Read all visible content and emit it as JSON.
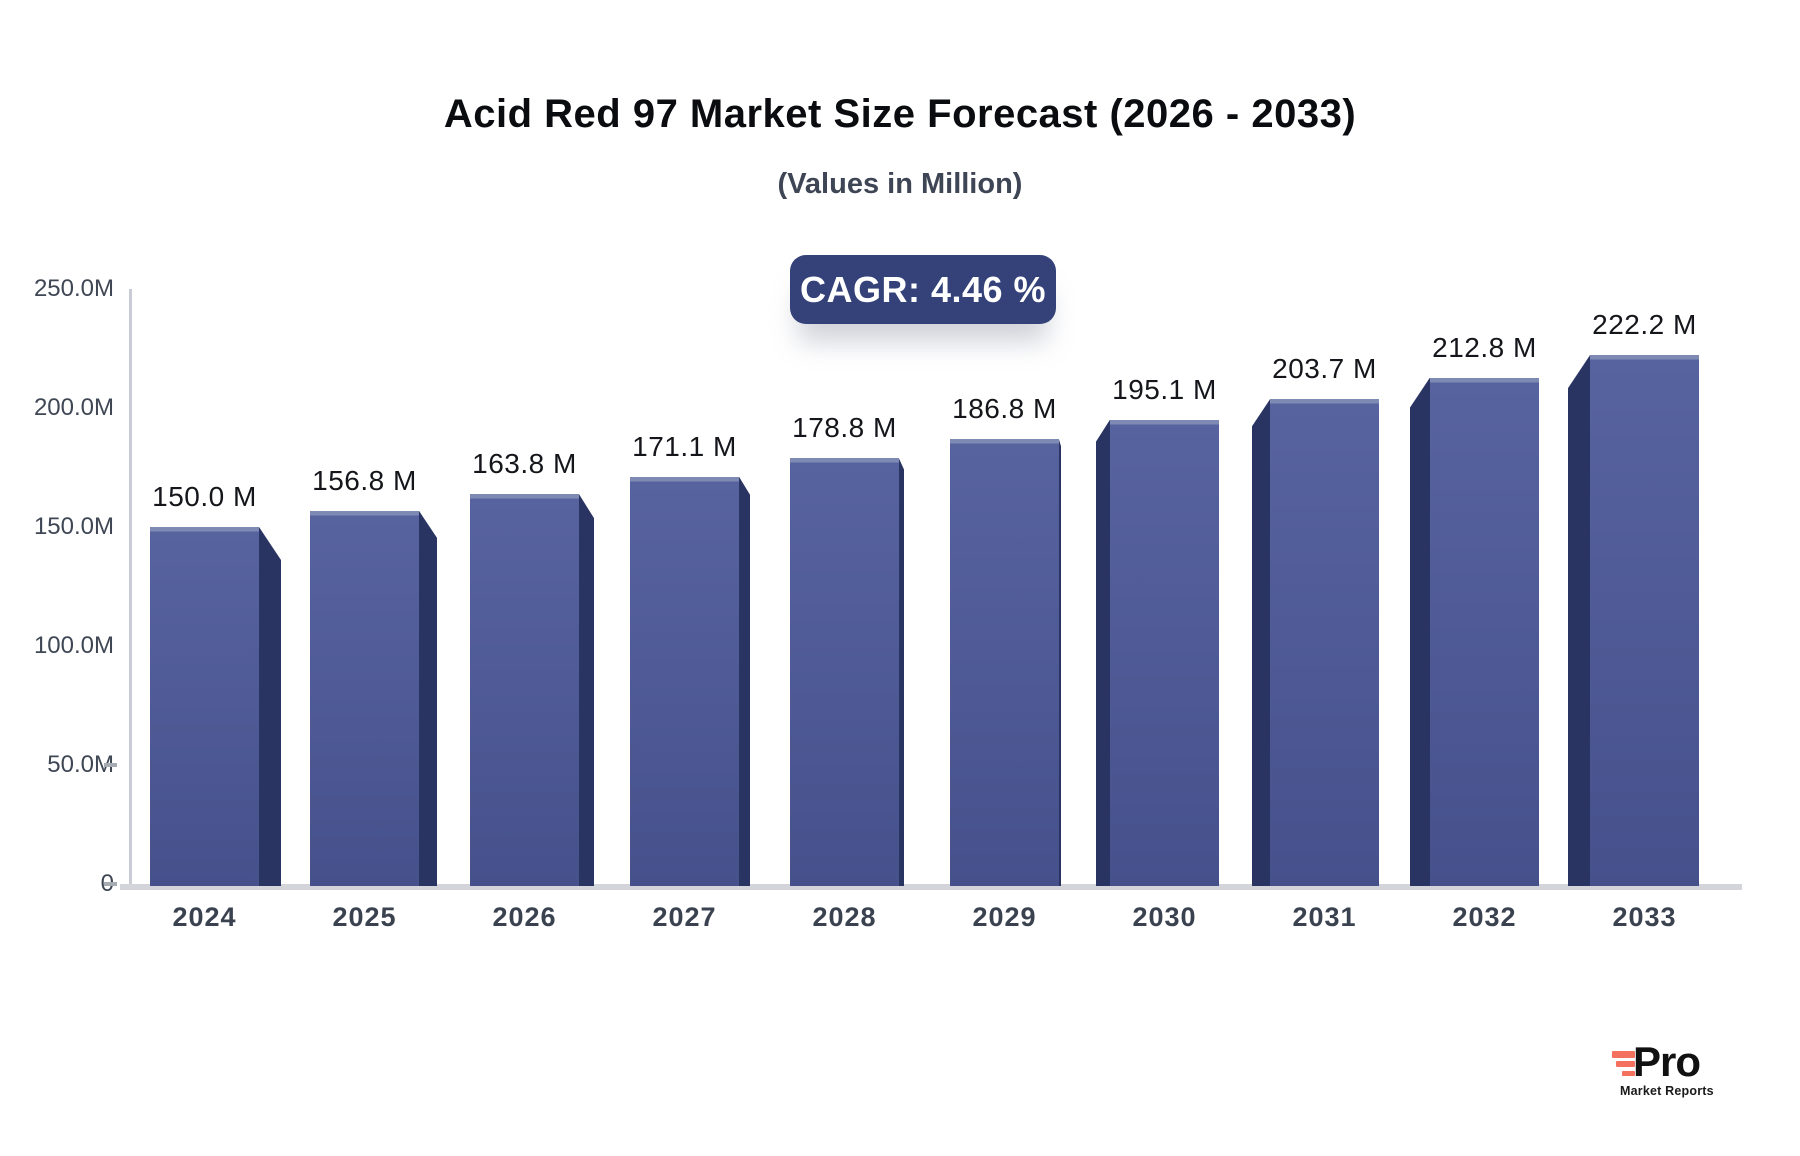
{
  "header": {
    "title": "Acid Red 97 Market Size Forecast (2026 - 2033)",
    "subtitle": "(Values in Million)"
  },
  "badge": {
    "label": "CAGR: 4.46 %"
  },
  "chart_data": {
    "type": "bar",
    "title": "Acid Red 97 Market Size Forecast (2026 - 2033)",
    "subtitle": "(Values in Million)",
    "unit": "Million",
    "categories": [
      "2024",
      "2025",
      "2026",
      "2027",
      "2028",
      "2029",
      "2030",
      "2031",
      "2032",
      "2033"
    ],
    "values": [
      150.0,
      156.8,
      163.8,
      171.1,
      178.8,
      186.8,
      195.1,
      203.7,
      212.8,
      222.2
    ],
    "value_labels": [
      "150.0 M",
      "156.8 M",
      "163.8 M",
      "171.1 M",
      "178.8 M",
      "186.8 M",
      "195.1 M",
      "203.7 M",
      "212.8 M",
      "222.2 M"
    ],
    "ylim": [
      0,
      250
    ],
    "yticks": [
      {
        "label": "250.0M",
        "value": 250,
        "dash": false
      },
      {
        "label": "200.0M",
        "value": 200,
        "dash": false
      },
      {
        "label": "150.0M",
        "value": 150,
        "dash": false
      },
      {
        "label": "100.0M",
        "value": 100,
        "dash": false
      },
      {
        "label": "50.0M",
        "value": 50,
        "dash": true
      },
      {
        "label": "0",
        "value": 0,
        "dash": true
      }
    ],
    "grid": false,
    "legend": false,
    "cagr": "4.46 %"
  },
  "colors": {
    "bar_face_edge": "#7E89B4",
    "bar_face_top": "#57639F",
    "bar_face_bottom": "#46518C",
    "bar_side": "#2A3463",
    "axis_line": "#C9CCD5",
    "baseline": "#D3D5DB",
    "tick_dash": "#A6AAB3",
    "badge_bg": "#344279",
    "badge_text": "#FFFFFF",
    "logo_accent": "#F4705F"
  },
  "logo": {
    "name": "Pro",
    "tagline": "Market Reports"
  }
}
